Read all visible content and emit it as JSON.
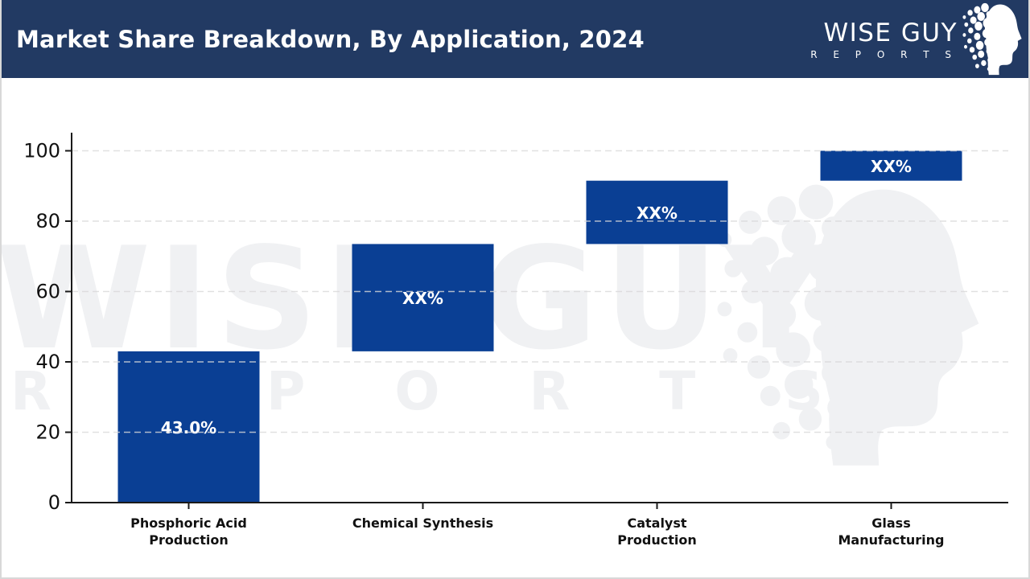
{
  "header": {
    "title": "Market Share Breakdown, By Application, 2024"
  },
  "logo": {
    "wordmark": "WISE GUY",
    "subtext": "R E P O R T S"
  },
  "watermark": {
    "wordmark": "WISE GUY",
    "subtext": "R E P O R T S"
  },
  "colors": {
    "header_bg": "#223a63",
    "bar": "#0a3f94",
    "bar_label": "#ffffff",
    "grid": "#d9d9d9",
    "axis": "#1a1a1a",
    "tick_text": "#111111",
    "watermark": "#f0f1f3",
    "logo_text": "#ffffff"
  },
  "chart_data": {
    "type": "bar",
    "subtype": "waterfall",
    "title": "Market Share Breakdown, By Application, 2024",
    "categories": [
      "Phosphoric Acid\nProduction",
      "Chemical Synthesis",
      "Catalyst\nProduction",
      "Glass\nManufacturing"
    ],
    "segments": [
      {
        "category": "Phosphoric Acid Production",
        "start": 0,
        "end": 43,
        "label": "43.0%"
      },
      {
        "category": "Chemical Synthesis",
        "start": 43,
        "end": 73.5,
        "label": "XX%"
      },
      {
        "category": "Catalyst Production",
        "start": 73.5,
        "end": 91.5,
        "label": "XX%"
      },
      {
        "category": "Glass Manufacturing",
        "start": 91.5,
        "end": 100,
        "label": "XX%"
      }
    ],
    "xlabel": "",
    "ylabel": "",
    "yticks": [
      0,
      20,
      40,
      60,
      80,
      100
    ],
    "ylim": [
      0,
      105
    ],
    "grid": "horizontal-dashed",
    "legend": "none"
  }
}
